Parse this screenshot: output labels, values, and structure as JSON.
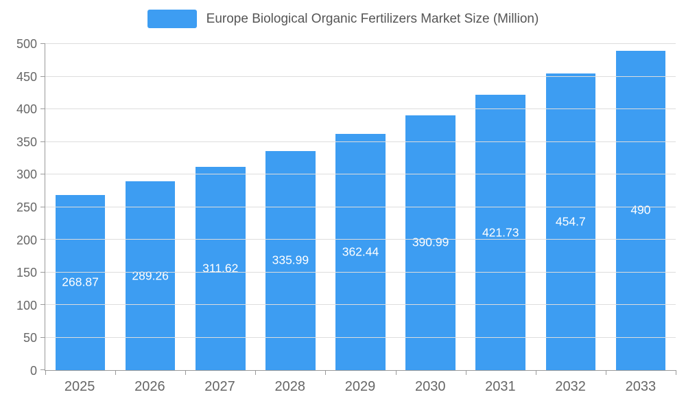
{
  "chart_data": {
    "type": "bar",
    "title": "Europe Biological Organic Fertilizers Market Size (Million)",
    "categories": [
      "2025",
      "2026",
      "2027",
      "2028",
      "2029",
      "2030",
      "2031",
      "2032",
      "2033"
    ],
    "values": [
      268.87,
      289.26,
      311.62,
      335.99,
      362.44,
      390.99,
      421.73,
      454.7,
      490
    ],
    "value_labels": [
      "268.87",
      "289.26",
      "311.62",
      "335.99",
      "362.44",
      "390.99",
      "421.73",
      "454.7",
      "490"
    ],
    "ylabel": "",
    "xlabel": "",
    "ylim": [
      0,
      500
    ],
    "ytick_step": 50,
    "grid": true,
    "legend_position": "top",
    "colors": {
      "bar": "#3d9df2",
      "bar_label": "#ffffff",
      "axis_text": "#666666",
      "grid_line": "#dddddd",
      "axis_line": "#999999",
      "title_text": "#555555",
      "background": "#ffffff"
    }
  }
}
